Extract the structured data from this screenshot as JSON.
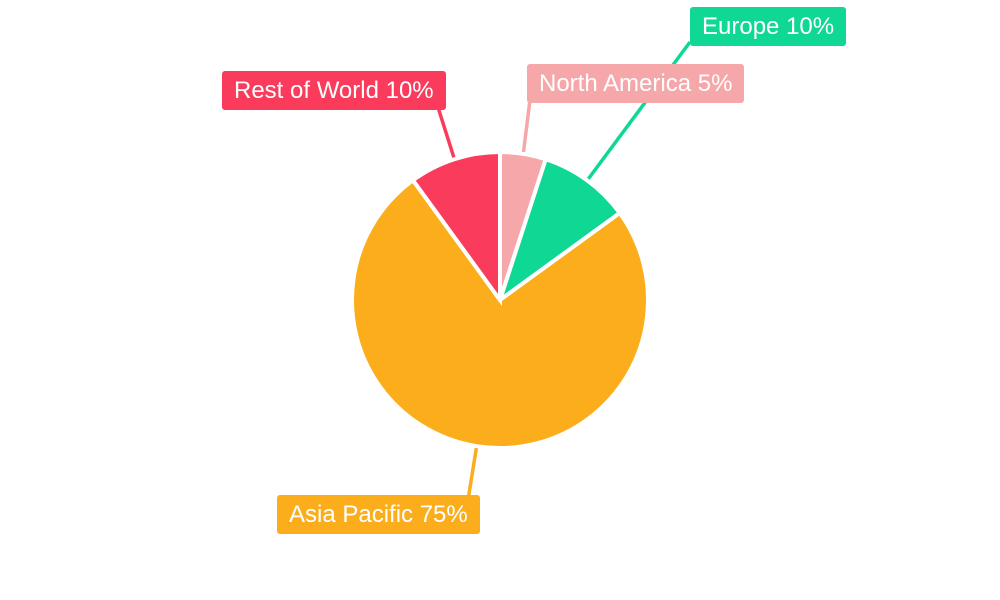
{
  "chart_data": {
    "type": "pie",
    "unit": "%",
    "start_angle_deg": 0,
    "direction": "clockwise",
    "legend_position": "none",
    "grid": false,
    "background_color": "#FFFFFF",
    "label_text_color": "#FFFFFF",
    "slice_border_color": "#FFFFFF",
    "categories": [
      "North America",
      "Europe",
      "Asia Pacific",
      "Rest of World"
    ],
    "values": [
      5,
      10,
      75,
      10
    ],
    "slices": [
      {
        "id": "north-america",
        "label": "North America",
        "value": 5,
        "label_text": "North America 5%",
        "color": "#F5A7AA"
      },
      {
        "id": "europe",
        "label": "Europe",
        "value": 10,
        "label_text": "Europe 10%",
        "color": "#0FD894"
      },
      {
        "id": "asia-pacific",
        "label": "Asia Pacific",
        "value": 75,
        "label_text": "Asia Pacific 75%",
        "color": "#FBAD1B"
      },
      {
        "id": "rest-of-world",
        "label": "Rest of World",
        "value": 10,
        "label_text": "Rest of World 10%",
        "color": "#FA3B5C"
      }
    ]
  }
}
